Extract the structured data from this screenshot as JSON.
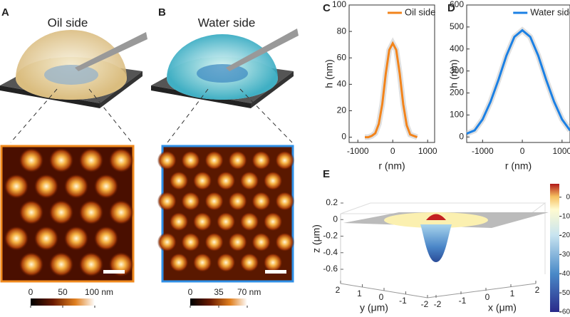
{
  "panels": [
    {
      "label": "A",
      "title": "Oil side",
      "colorbar_ticks": [
        0,
        50,
        {
          "value": 100,
          "label": "100 nm"
        }
      ]
    },
    {
      "label": "B",
      "title": "Water side",
      "colorbar_ticks": [
        0,
        35,
        {
          "value": 70,
          "label": "70 nm"
        }
      ]
    }
  ],
  "chart_data": [
    {
      "type": "line",
      "panel_label": "C",
      "xlabel": "r (nm)",
      "ylabel": "h (nm)",
      "x": [
        -800,
        -700,
        -600,
        -500,
        -400,
        -300,
        -200,
        -100,
        0,
        100,
        200,
        300,
        400,
        500,
        600,
        700
      ],
      "series": [
        {
          "name": "Oil side",
          "color": "#f2841c",
          "values": [
            0,
            0,
            1,
            3,
            10,
            25,
            48,
            66,
            71,
            66,
            48,
            25,
            9,
            2,
            1,
            0
          ]
        }
      ],
      "xlim": [
        -1250,
        1200
      ],
      "xticks": [
        -1000,
        0,
        1000
      ],
      "ylim": [
        -4,
        100
      ],
      "yticks": [
        0,
        20,
        40,
        60,
        80,
        100
      ]
    },
    {
      "type": "line",
      "panel_label": "D",
      "xlabel": "r (nm)",
      "ylabel": "h (nm)",
      "x": [
        -1400,
        -1200,
        -1000,
        -800,
        -600,
        -400,
        -200,
        0,
        200,
        400,
        600,
        800,
        1000,
        1200
      ],
      "series": [
        {
          "name": "Water side",
          "color": "#1b80e4",
          "values": [
            15,
            30,
            80,
            160,
            260,
            370,
            455,
            485,
            455,
            370,
            260,
            160,
            80,
            30
          ]
        }
      ],
      "xlim": [
        -1400,
        1200
      ],
      "xticks": [
        -1000,
        0,
        1000
      ],
      "ylim": [
        -25,
        600
      ],
      "yticks": [
        0,
        100,
        200,
        300,
        400,
        500,
        600
      ]
    },
    {
      "type": "surface",
      "panel_label": "E",
      "xlabel": "x (μm)",
      "ylabel": "y (μm)",
      "zlabel": "z (μm)",
      "xlim": [
        -2,
        2
      ],
      "xticks": [
        -2,
        -1,
        0,
        1,
        2
      ],
      "ylim": [
        -2,
        2
      ],
      "yticks": [
        -2,
        -1,
        0,
        1,
        2
      ],
      "zlim": [
        -0.6,
        0.2
      ],
      "zticks": [
        -0.6,
        -0.4,
        -0.2,
        0,
        0.2
      ],
      "colorbar_lim": [
        -60,
        7
      ],
      "colorbar_ticks": [
        -60,
        -50,
        -40,
        -30,
        -20,
        -10,
        0
      ]
    }
  ]
}
